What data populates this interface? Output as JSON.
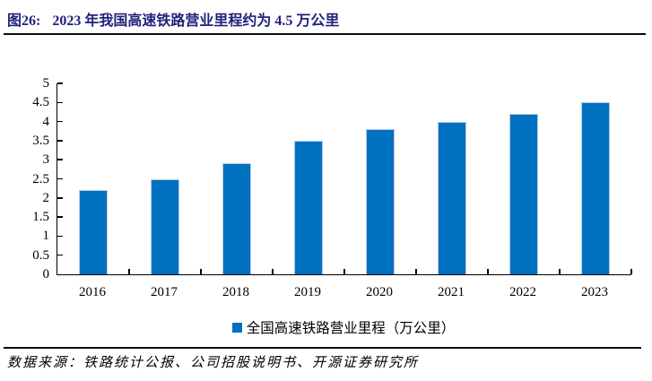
{
  "figure": {
    "label": "图26:",
    "title": "2023 年我国高速铁路营业里程约为 4.5 万公里"
  },
  "chart_data": {
    "type": "bar",
    "categories": [
      "2016",
      "2017",
      "2018",
      "2019",
      "2020",
      "2021",
      "2022",
      "2023"
    ],
    "values": [
      2.2,
      2.5,
      2.9,
      3.5,
      3.8,
      4.0,
      4.2,
      4.5
    ],
    "series_name": "全国高速铁路营业里程（万公里）",
    "title": "",
    "xlabel": "",
    "ylabel": "",
    "ylim": [
      0,
      5
    ],
    "ytick_step": 0.5,
    "grid": false,
    "legend_position": "bottom",
    "bar_color": "#0070c0"
  },
  "legend": {
    "label": "全国高速铁路营业里程（万公里）",
    "swatch_color": "#0070c0"
  },
  "source": {
    "text": "数据来源：铁路统计公报、公司招股说明书、开源证券研究所"
  },
  "colors": {
    "title_text": "#21217b",
    "rule": "#0a0a0a",
    "axis": "#000000",
    "bar": "#0070c0",
    "bar_border": "#bcc9e8",
    "tick_label": "#000000"
  }
}
